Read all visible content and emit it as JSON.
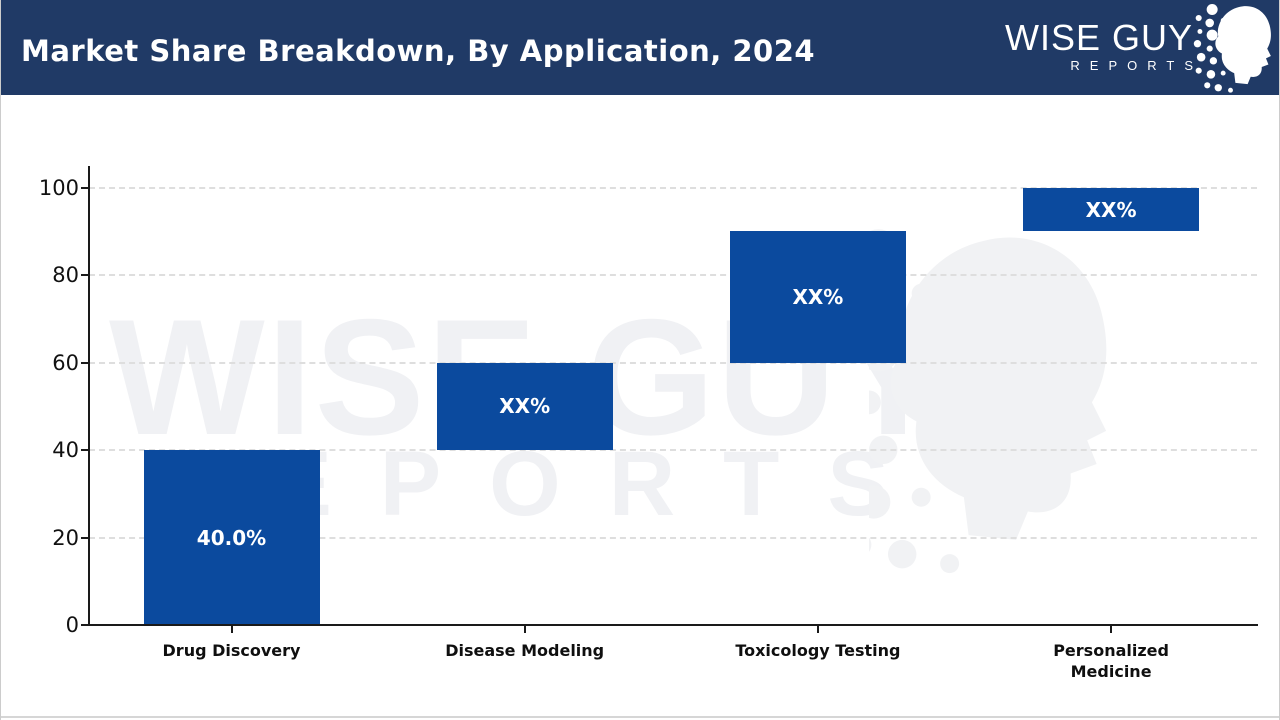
{
  "header": {
    "title": "Market Share Breakdown, By Application, 2024",
    "logo": {
      "line1": "WISE GUY",
      "line2": "REPORTS",
      "icon": "dotted-head-profile-icon"
    }
  },
  "watermark": {
    "line1": "WISE GUY",
    "line2": "REPORTS",
    "icon": "dotted-head-profile-icon"
  },
  "chart_data": {
    "type": "bar",
    "subtype": "waterfall",
    "title": "Market Share Breakdown, By Application, 2024",
    "categories": [
      "Drug Discovery",
      "Disease Modeling",
      "Toxicology Testing",
      "Personalized Medicine"
    ],
    "bars": [
      {
        "category": "Drug Discovery",
        "label": "40.0%",
        "start": 0,
        "end": 40,
        "delta": 40
      },
      {
        "category": "Disease Modeling",
        "label": "XX%",
        "start": 40,
        "end": 60,
        "delta": 20
      },
      {
        "category": "Toxicology Testing",
        "label": "XX%",
        "start": 60,
        "end": 90,
        "delta": 30
      },
      {
        "category": "Personalized Medicine",
        "label": "XX%",
        "start": 90,
        "end": 100,
        "delta": 10
      }
    ],
    "yticks": [
      0,
      20,
      40,
      60,
      80,
      100
    ],
    "ylim": [
      0,
      105
    ],
    "xlabel": "",
    "ylabel": "",
    "grid": "horizontal-dashed",
    "legend": "none",
    "bar_value_label_position": "center-inside"
  },
  "colors": {
    "header_bg": "#203a66",
    "bar_fill": "#0b4a9e",
    "bar_label": "#ffffff",
    "gridline": "#dedede",
    "axis": "#1a1a1a",
    "watermark": "#f0f1f4",
    "title_text": "#ffffff"
  }
}
